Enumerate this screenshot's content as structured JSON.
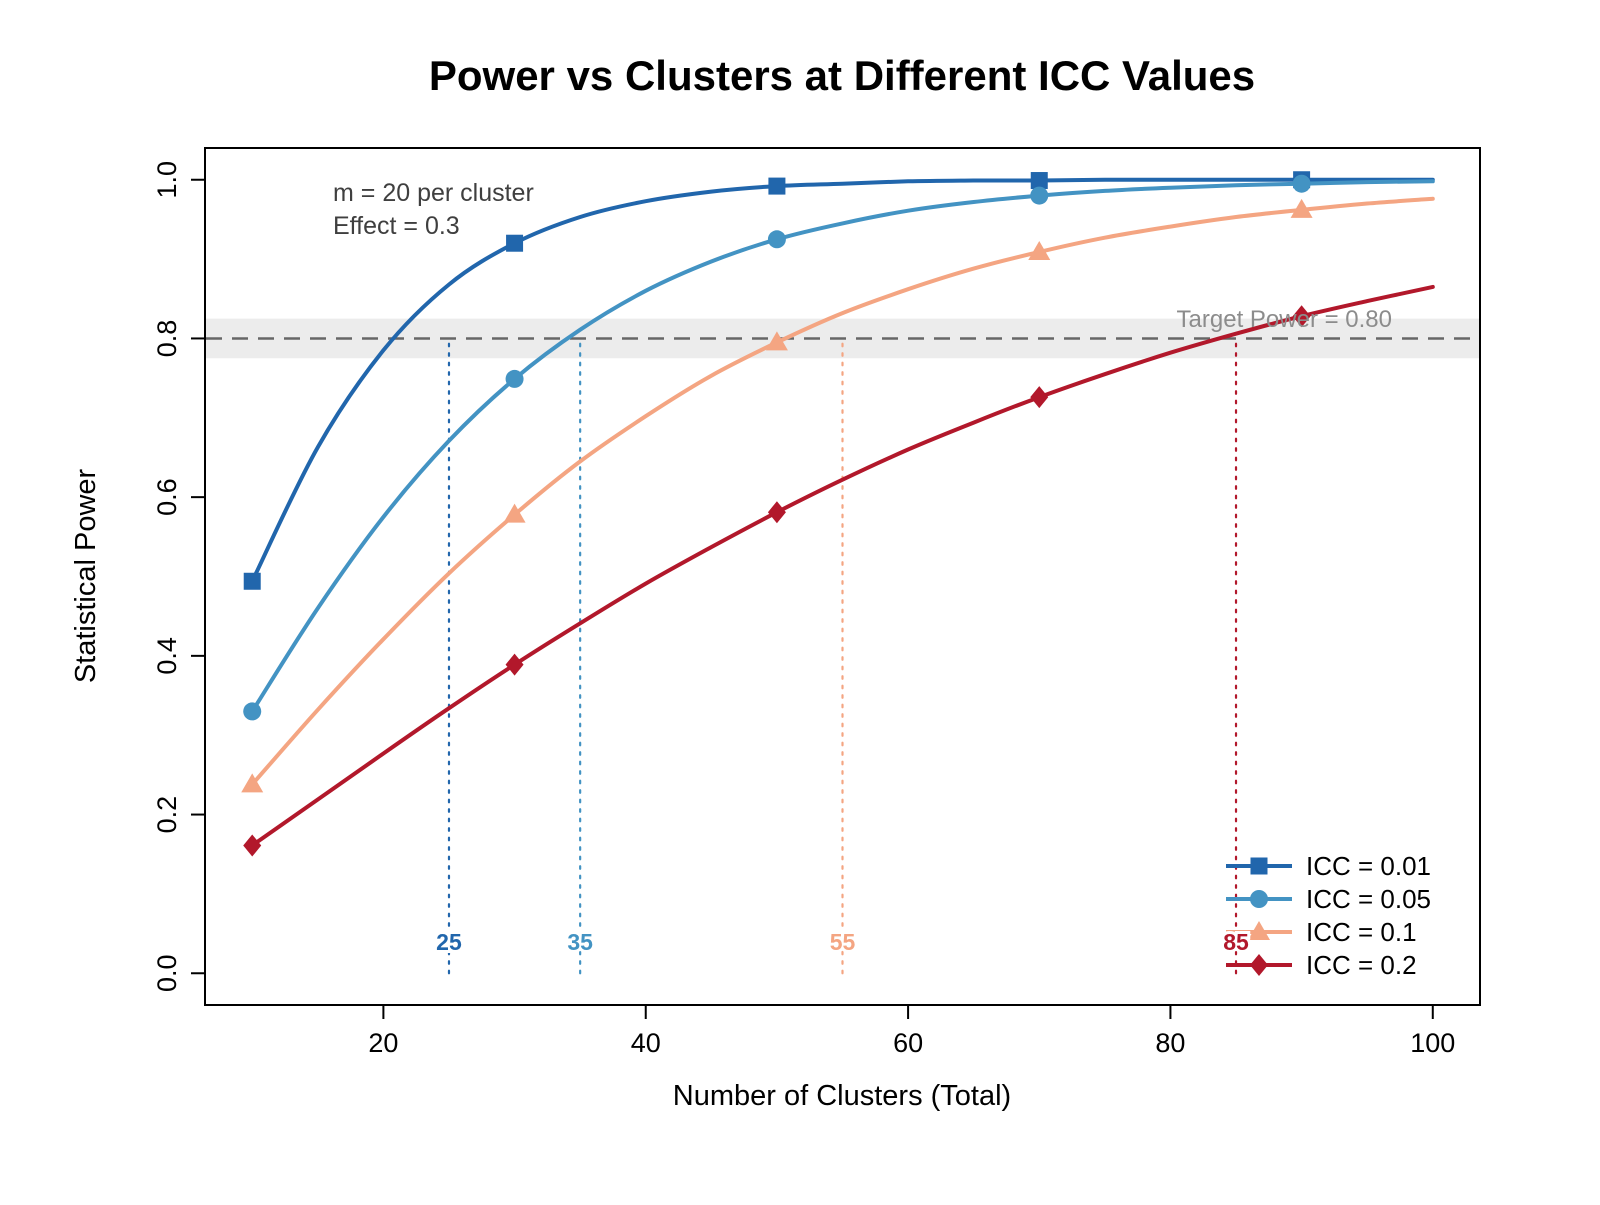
{
  "title": "Power vs Clusters at Different ICC Values",
  "annotation": {
    "line1": "m = 20 per cluster",
    "line2": "Effect = 0.3"
  },
  "target": {
    "label": "Target Power = 0.80",
    "value": 0.8,
    "band": [
      0.775,
      0.825
    ],
    "line_color": "#666666",
    "band_color": "#ececec",
    "label_color": "#8c8c8c"
  },
  "axes": {
    "x": {
      "label": "Number of Clusters (Total)",
      "ticks": [
        20,
        40,
        60,
        80,
        100
      ],
      "range": [
        6.4,
        103.6
      ]
    },
    "y": {
      "label": "Statistical Power",
      "tick_labels": [
        "0.0",
        "0.2",
        "0.4",
        "0.6",
        "0.8",
        "1.0"
      ],
      "tick_values": [
        0.0,
        0.2,
        0.4,
        0.6,
        0.8,
        1.0
      ],
      "range": [
        -0.04,
        1.04
      ]
    }
  },
  "legend": {
    "position": "bottom-right"
  },
  "chart_data": {
    "type": "line",
    "title": "Power vs Clusters at Different ICC Values",
    "xlabel": "Number of Clusters (Total)",
    "ylabel": "Statistical Power",
    "xlim": [
      10,
      100
    ],
    "ylim": [
      0,
      1
    ],
    "grid": false,
    "legend_position": "bottom-right",
    "target_power": 0.8,
    "x": [
      10,
      15,
      20,
      25,
      30,
      35,
      40,
      45,
      50,
      55,
      60,
      65,
      70,
      75,
      80,
      85,
      90,
      95,
      100
    ],
    "marker_x": [
      10,
      30,
      50,
      70,
      90
    ],
    "series": [
      {
        "name": "ICC = 0.01",
        "color": "#2166ac",
        "marker": "square",
        "required_clusters": 25,
        "values": [
          0.494,
          0.663,
          0.785,
          0.868,
          0.92,
          0.953,
          0.973,
          0.985,
          0.992,
          0.995,
          0.998,
          0.999,
          0.999,
          1.0,
          1.0,
          1.0,
          1.0,
          1.0,
          1.0
        ]
      },
      {
        "name": "ICC = 0.05",
        "color": "#4393c3",
        "marker": "circle",
        "required_clusters": 35,
        "values": [
          0.33,
          0.46,
          0.575,
          0.671,
          0.749,
          0.811,
          0.86,
          0.897,
          0.925,
          0.945,
          0.961,
          0.972,
          0.98,
          0.986,
          0.99,
          0.993,
          0.995,
          0.997,
          0.998
        ]
      },
      {
        "name": "ICC = 0.1",
        "color": "#f4a582",
        "marker": "triangle",
        "required_clusters": 55,
        "values": [
          0.238,
          0.332,
          0.421,
          0.504,
          0.578,
          0.645,
          0.702,
          0.753,
          0.795,
          0.832,
          0.862,
          0.888,
          0.909,
          0.927,
          0.941,
          0.953,
          0.962,
          0.97,
          0.976
        ]
      },
      {
        "name": "ICC = 0.2",
        "color": "#b2182b",
        "marker": "diamond",
        "required_clusters": 85,
        "values": [
          0.161,
          0.219,
          0.277,
          0.334,
          0.389,
          0.441,
          0.491,
          0.537,
          0.581,
          0.622,
          0.66,
          0.694,
          0.726,
          0.755,
          0.782,
          0.806,
          0.828,
          0.847,
          0.865
        ]
      }
    ]
  }
}
